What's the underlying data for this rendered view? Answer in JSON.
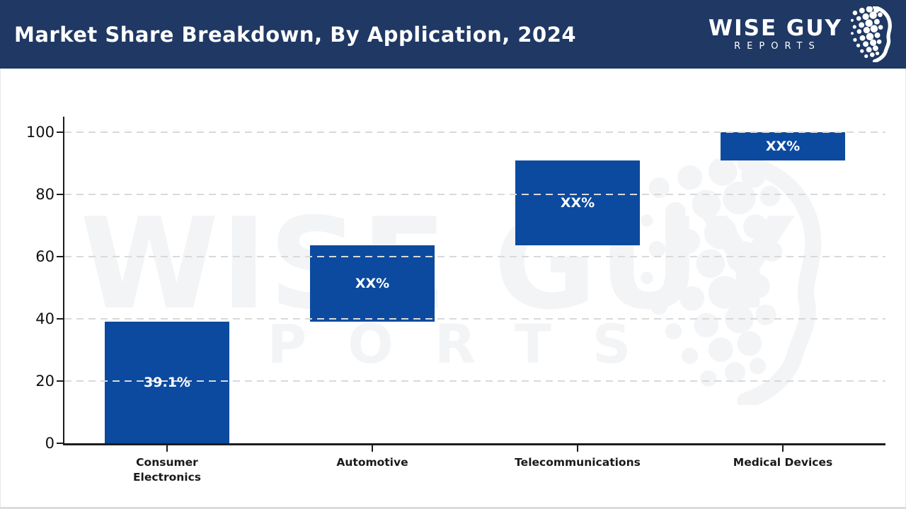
{
  "header": {
    "title": "Market Share Breakdown, By Application, 2024",
    "logo": {
      "line1": "WISE GUY",
      "line2": "REPORTS"
    }
  },
  "watermark": {
    "line1": "WISE GUY",
    "line2": "REPORTS"
  },
  "colors": {
    "header_bg": "#1f3864",
    "bar": "#0b4a9f",
    "grid": "#d9d9d9",
    "axis": "#1c1c1c",
    "bar_label": "#ffffff",
    "watermark": "#f3f4f6"
  },
  "chart_data": {
    "type": "bar",
    "subtype": "waterfall",
    "title": "Market Share Breakdown, By Application, 2024",
    "categories": [
      "Consumer\nElectronics",
      "Automotive",
      "Telecommunications",
      "Medical Devices"
    ],
    "series": [
      {
        "name": "Market Share",
        "segments": [
          {
            "from": 0,
            "to": 39.1,
            "label": "39.1%"
          },
          {
            "from": 39.1,
            "to": 63.6,
            "label": "XX%"
          },
          {
            "from": 63.6,
            "to": 90.9,
            "label": "XX%"
          },
          {
            "from": 90.9,
            "to": 100,
            "label": "XX%"
          }
        ]
      }
    ],
    "ylim": [
      0,
      100
    ],
    "yticks": [
      0,
      20,
      40,
      60,
      80,
      100
    ],
    "grid": {
      "y": true,
      "style": "dashed",
      "over_bars": true
    },
    "legend": null
  }
}
